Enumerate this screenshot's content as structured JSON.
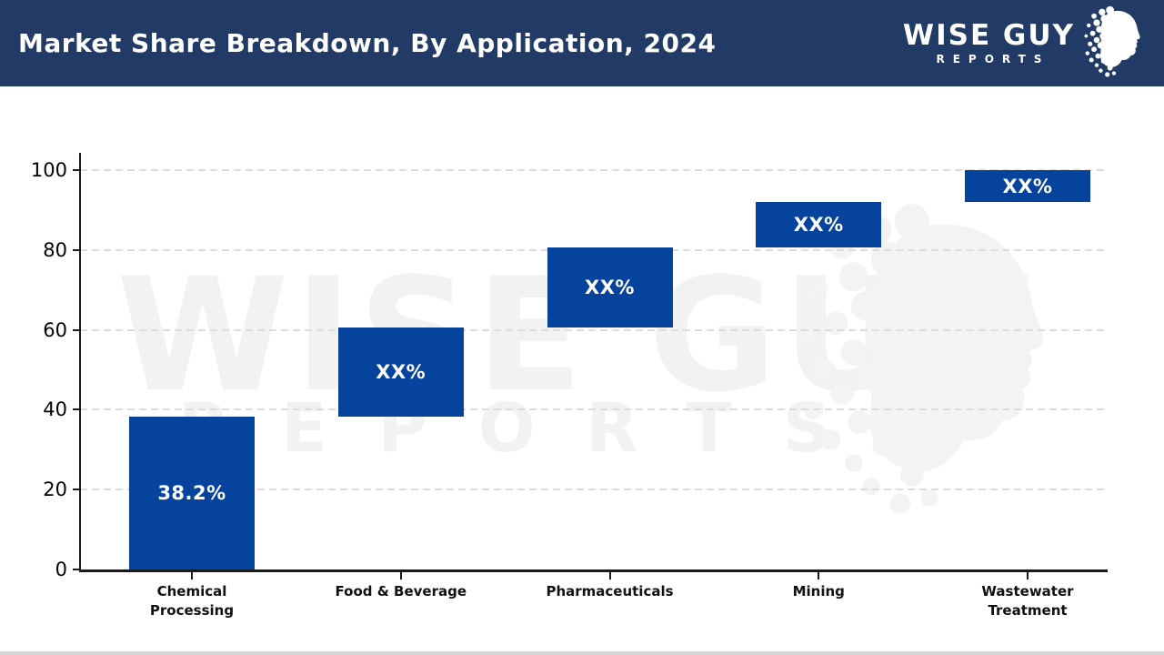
{
  "header": {
    "title": "Market Share Breakdown, By Application, 2024",
    "logo_primary": "WISE GUY",
    "logo_secondary": "REPORTS"
  },
  "watermark": {
    "primary": "WISE GUY",
    "secondary": "REPORTS"
  },
  "colors": {
    "header_bg": "#213A66",
    "bar": "#05439C",
    "grid": "#DCDCDC",
    "axis": "#1A1A1A",
    "bar_label": "#FFFFFF",
    "footer_strip": "#D4D4D4"
  },
  "chart_data": {
    "type": "bar",
    "subtype": "waterfall",
    "title": "Market Share Breakdown, By Application, 2024",
    "categories": [
      "Chemical Processing",
      "Food & Beverage",
      "Pharmaceuticals",
      "Mining",
      "Wastewater Treatment"
    ],
    "categories_display": [
      [
        "Chemical",
        "Processing"
      ],
      [
        "Food & Beverage"
      ],
      [
        "Pharmaceuticals"
      ],
      [
        "Mining"
      ],
      [
        "Wastewater",
        "Treatment"
      ]
    ],
    "segments": [
      {
        "category": "Chemical Processing",
        "start": 0,
        "end": 38.2,
        "value": 38.2,
        "label": "38.2%"
      },
      {
        "category": "Food & Beverage",
        "start": 38.2,
        "end": 60.7,
        "value": 22.5,
        "label": "XX%"
      },
      {
        "category": "Pharmaceuticals",
        "start": 60.7,
        "end": 80.7,
        "value": 20.0,
        "label": "XX%"
      },
      {
        "category": "Mining",
        "start": 80.7,
        "end": 92.0,
        "value": 11.3,
        "label": "XX%"
      },
      {
        "category": "Wastewater Treatment",
        "start": 92.0,
        "end": 100.0,
        "value": 8.0,
        "label": "XX%"
      }
    ],
    "xlabel": "",
    "ylabel": "",
    "ylim": [
      0,
      105
    ],
    "yticks": [
      0,
      20,
      40,
      60,
      80,
      100
    ],
    "grid": "dashed-horizontal",
    "legend": "none",
    "bar_color": "#05439C",
    "label_color": "#FFFFFF"
  }
}
